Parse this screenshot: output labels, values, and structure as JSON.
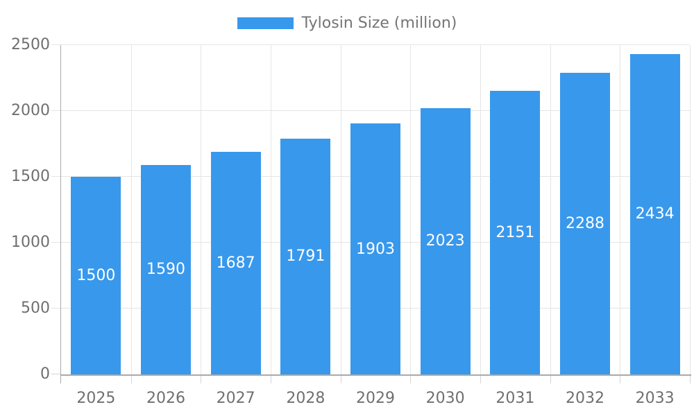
{
  "legend": {
    "label": "Tylosin Size (million)"
  },
  "colors": {
    "bar": "#3898EC",
    "grid": "#E5E5E5",
    "axis": "#A9A9A9",
    "tick": "#D4D4D4",
    "axis_text": "#6F6F6F",
    "legend_text": "#757575",
    "value_text": "#FFFFFF",
    "background": "#FFFFFF"
  },
  "chart_data": {
    "type": "bar",
    "title": "Tylosin Size (million)",
    "series_name": "Tylosin Size (million)",
    "categories": [
      "2025",
      "2026",
      "2027",
      "2028",
      "2029",
      "2030",
      "2031",
      "2032",
      "2033"
    ],
    "values": [
      1500,
      1590,
      1687,
      1791,
      1903,
      2023,
      2151,
      2288,
      2434
    ],
    "xlabel": "",
    "ylabel": "",
    "ylim": [
      0,
      2500
    ],
    "yticks": [
      0,
      500,
      1000,
      1500,
      2000,
      2500
    ],
    "grid": "on",
    "legend_position": "top-center",
    "value_labels": "inside-center-white"
  }
}
